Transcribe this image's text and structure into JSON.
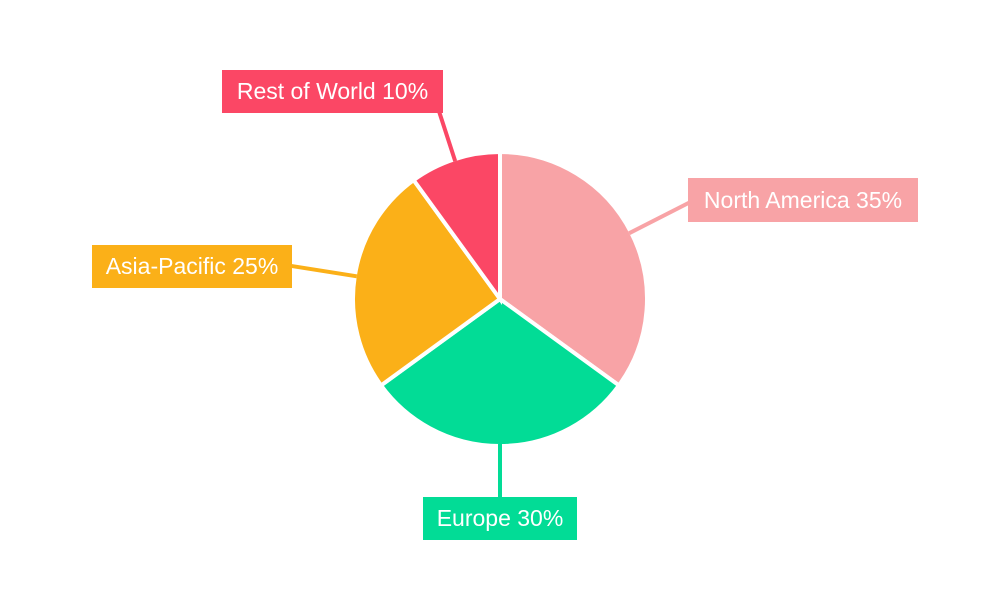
{
  "page": {
    "background_color": "#FFFFFF"
  },
  "chart_data": {
    "type": "pie",
    "title": "",
    "unit": "%",
    "start_angle": "top",
    "direction": "clockwise",
    "legend_position": "none",
    "label_style": "callout-boxes-with-leader-lines",
    "label_text_color": "#FFFFFF",
    "separator_color": "#FFFFFF",
    "categories": [
      "North America",
      "Europe",
      "Asia-Pacific",
      "Rest of World"
    ],
    "values": [
      35,
      30,
      25,
      10
    ],
    "slices": [
      {
        "label": "North America",
        "value": 35,
        "display": "North America 35%",
        "color": "#F8A3A6"
      },
      {
        "label": "Europe",
        "value": 30,
        "display": "Europe 30%",
        "color": "#02DC96"
      },
      {
        "label": "Asia-Pacific",
        "value": 25,
        "display": "Asia-Pacific 25%",
        "color": "#FBB018"
      },
      {
        "label": "Rest of World",
        "value": 10,
        "display": "Rest of World 10%",
        "color": "#FB4765"
      }
    ]
  }
}
